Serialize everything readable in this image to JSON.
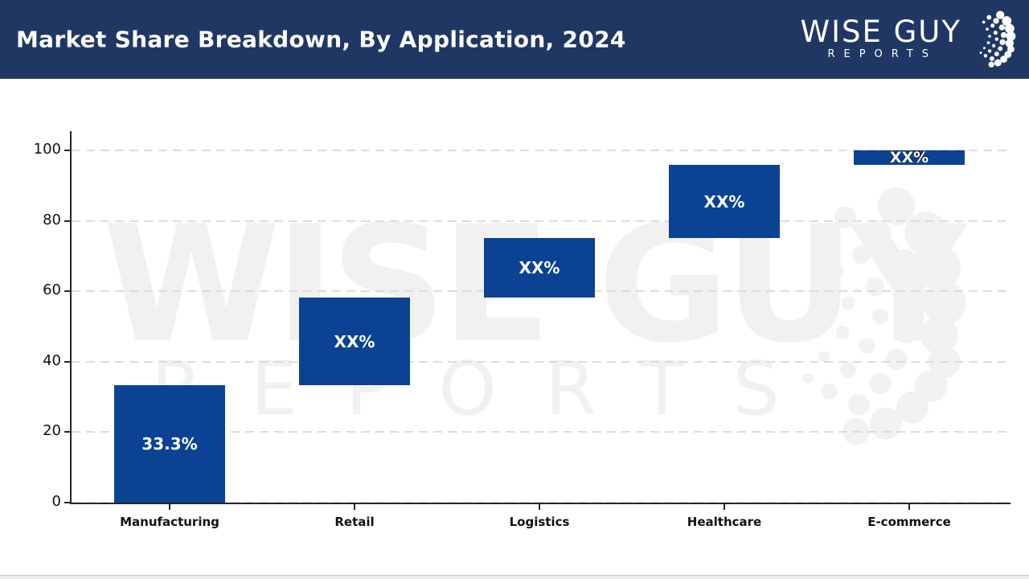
{
  "header": {
    "title": "Market Share Breakdown, By Application, 2024",
    "logo": {
      "line1": "WISE GUY",
      "line2": "REPORTS"
    }
  },
  "watermark": {
    "line1": "WISE GUY",
    "line2": "REPORTS"
  },
  "chart_data": {
    "type": "bar",
    "subtype": "waterfall",
    "title": "Market Share Breakdown, By Application, 2024",
    "xlabel": "",
    "ylabel": "",
    "categories": [
      "Manufacturing",
      "Retail",
      "Logistics",
      "Healthcare",
      "E-commerce"
    ],
    "bars": [
      {
        "category": "Manufacturing",
        "start": 0,
        "end": 33.3,
        "label": "33.3%"
      },
      {
        "category": "Retail",
        "start": 33.3,
        "end": 58.2,
        "label": "XX%"
      },
      {
        "category": "Logistics",
        "start": 58.2,
        "end": 75.1,
        "label": "XX%"
      },
      {
        "category": "Healthcare",
        "start": 75.1,
        "end": 95.9,
        "label": "XX%"
      },
      {
        "category": "E-commerce",
        "start": 95.9,
        "end": 100,
        "label": "XX%"
      }
    ],
    "yticks": [
      0,
      20,
      40,
      60,
      80,
      100
    ],
    "ylim": [
      0,
      105
    ],
    "grid": "dashed-horizontal",
    "legend": "none",
    "bar_color": "#0b4294",
    "bar_label_color": "#ffffff",
    "header_color": "#203763"
  }
}
